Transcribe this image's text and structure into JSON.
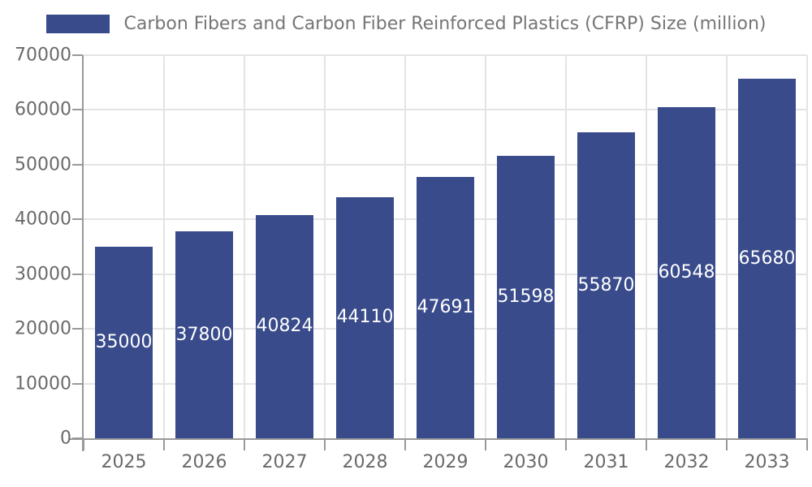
{
  "chart_data": {
    "type": "bar",
    "title": "Carbon Fibers and Carbon Fiber Reinforced Plastics (CFRP) Size (million)",
    "categories": [
      "2025",
      "2026",
      "2027",
      "2028",
      "2029",
      "2030",
      "2031",
      "2032",
      "2033"
    ],
    "values": [
      35000,
      37800,
      40824,
      44110,
      47691,
      51598,
      55870,
      60548,
      65680
    ],
    "xlabel": "",
    "ylabel": "",
    "ylim": [
      0,
      70000
    ],
    "yticks": [
      0,
      10000,
      20000,
      30000,
      40000,
      50000,
      60000,
      70000
    ],
    "grid": true,
    "legend_position": "top-center",
    "value_labels": "inside-center",
    "colors": {
      "bar": "#394B8B",
      "value_label": "#FFFFFF",
      "title_text": "#757575",
      "tick_label": "#6A6A6A",
      "axis_line": "#999999",
      "gridline": "#E4E4E4",
      "background": "#FFFFFF"
    }
  }
}
